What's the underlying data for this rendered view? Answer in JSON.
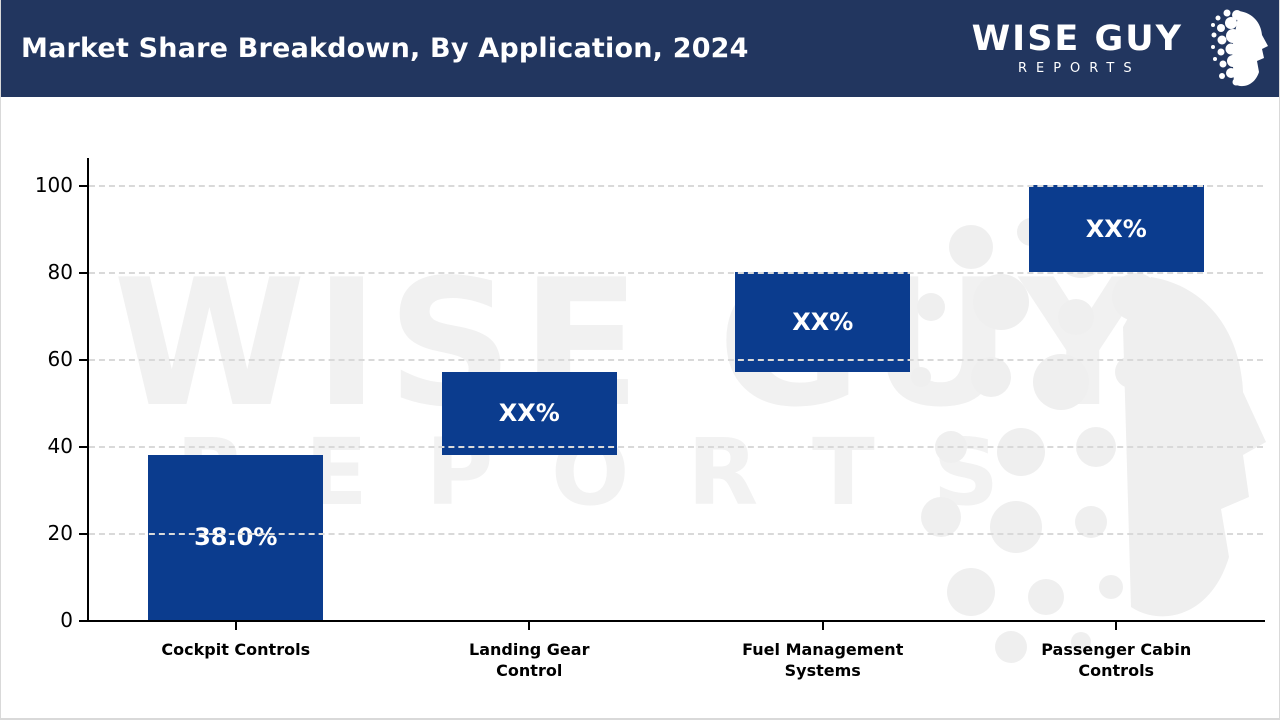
{
  "header": {
    "title": "Market Share Breakdown, By Application, 2024",
    "logo": {
      "name": "WISE GUY",
      "subtitle": "REPORTS"
    }
  },
  "watermark": {
    "line1": "WISE GUY",
    "line2": "REPORTS"
  },
  "chart_data": {
    "type": "bar",
    "variant": "waterfall",
    "title": "Market Share Breakdown, By Application, 2024",
    "categories": [
      "Cockpit Controls",
      "Landing Gear\nControl",
      "Fuel Management\nSystems",
      "Passenger Cabin\nControls"
    ],
    "segments": [
      {
        "category": "Cockpit Controls",
        "start": 0,
        "end": 38,
        "value": 38.0,
        "label": "38.0%"
      },
      {
        "category": "Landing Gear Control",
        "start": 38,
        "end": 57,
        "value": 19,
        "label": "XX%"
      },
      {
        "category": "Fuel Management Systems",
        "start": 57,
        "end": 80,
        "value": 23,
        "label": "XX%"
      },
      {
        "category": "Passenger Cabin Controls",
        "start": 80,
        "end": 100,
        "value": 20,
        "label": "XX%"
      }
    ],
    "ylim": [
      0,
      100
    ],
    "yticks": [
      0,
      20,
      40,
      60,
      80,
      100
    ],
    "grid": "horizontal-dashed",
    "legend": "none",
    "bar_color": "#0b3c8e",
    "bar_label_color": "#ffffff",
    "axis_color": "#000000",
    "gridline_color": "#d9d9d9"
  },
  "colors": {
    "header_bg": "#22365f",
    "page_bg": "#ffffff",
    "watermark": "#f1f1f1",
    "border": "#d9d9d9"
  }
}
